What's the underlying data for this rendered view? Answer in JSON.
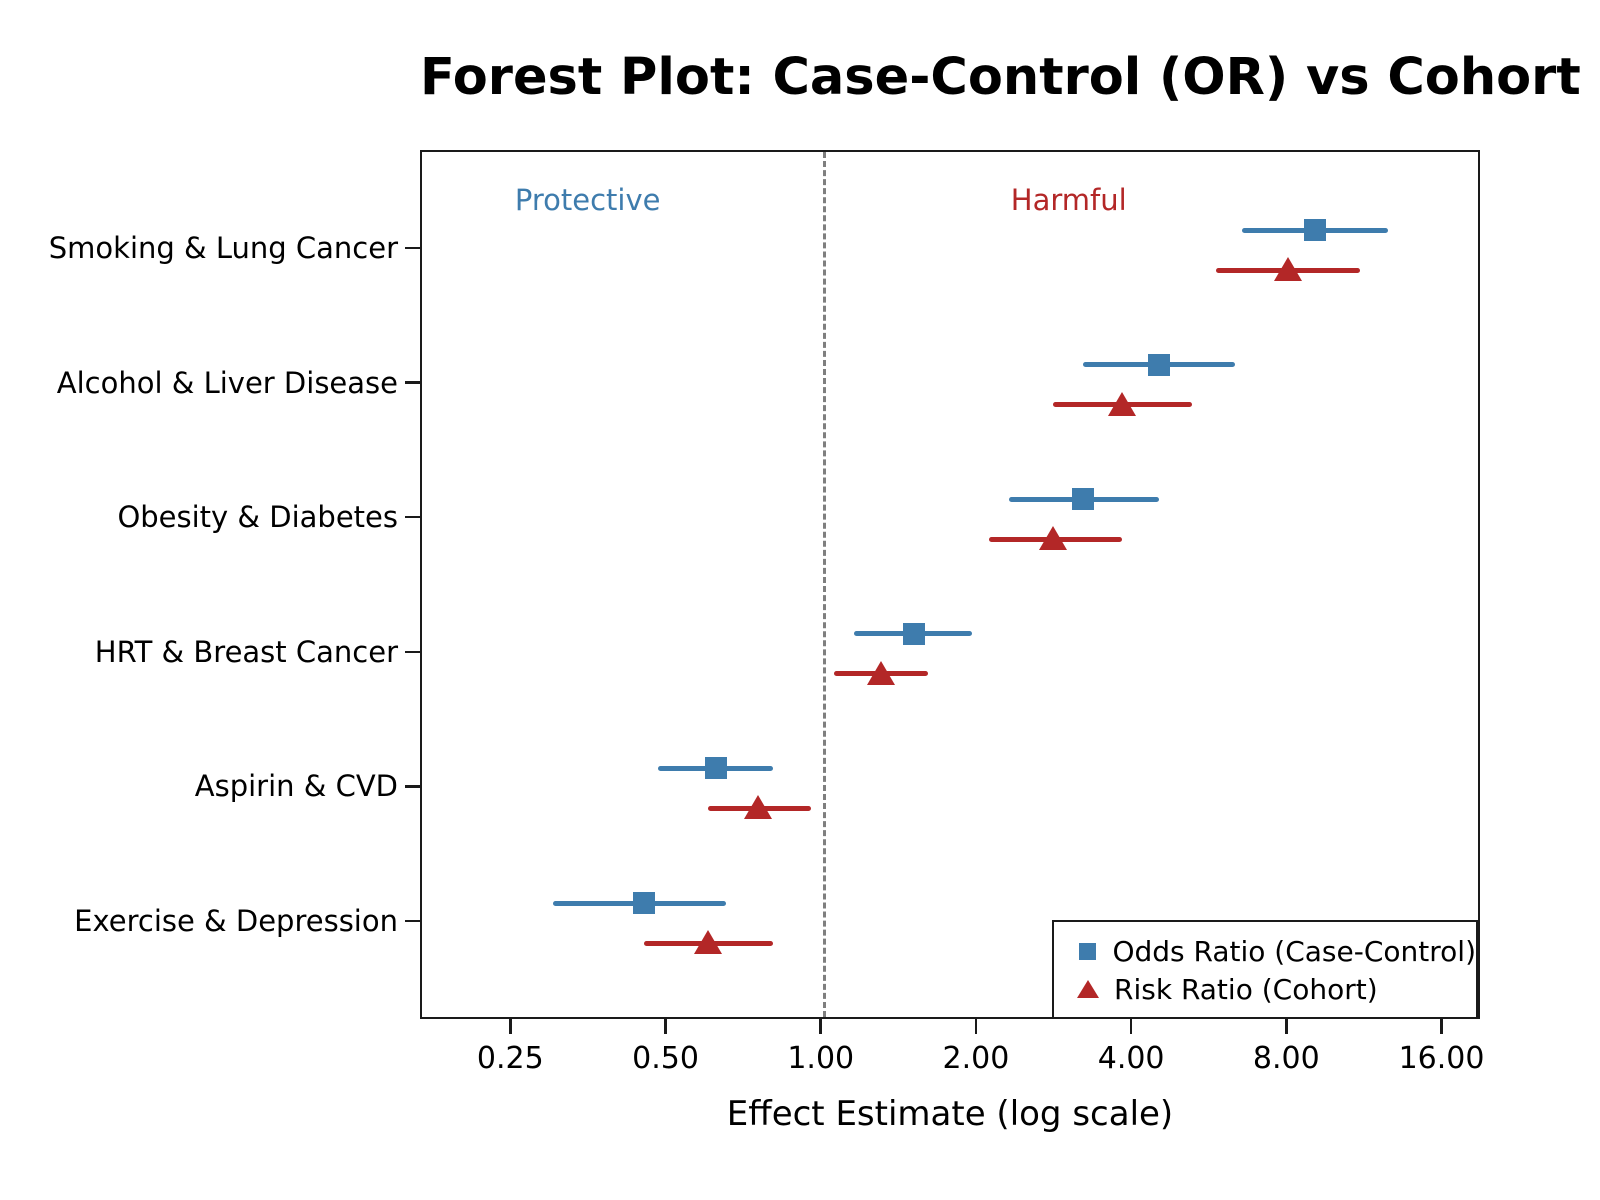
{
  "title": "Forest Plot: Case-Control (OR) vs Cohort (RR)",
  "colors": {
    "odds_ratio": "#3e7cad",
    "risk_ratio": "#b32727",
    "reference_line": "#7f7f7f",
    "axis": "#1a1a1a"
  },
  "legend": {
    "items": [
      {
        "label": "Odds Ratio (Case-Control)",
        "marker": "square",
        "color": "#3e7cad"
      },
      {
        "label": "Risk Ratio (Cohort)",
        "marker": "triangle",
        "color": "#b32727"
      }
    ]
  },
  "chart_data": {
    "type": "scatter",
    "variant": "forest-plot",
    "title": "Forest Plot: Case-Control (OR) vs Cohort (RR)",
    "xlabel": "Effect Estimate (log scale)",
    "ylabel": "",
    "xscale": "log2",
    "xlim": [
      0.167,
      19.0
    ],
    "grid": false,
    "legend_position": "lower right",
    "reference_line_x": 1.0,
    "x_ticks": [
      {
        "value": 0.25,
        "label": "0.25"
      },
      {
        "value": 0.5,
        "label": "0.50"
      },
      {
        "value": 1.0,
        "label": "1.00"
      },
      {
        "value": 2.0,
        "label": "2.00"
      },
      {
        "value": 4.0,
        "label": "4.00"
      },
      {
        "value": 8.0,
        "label": "8.00"
      },
      {
        "value": 16.0,
        "label": "16.00"
      }
    ],
    "categories": [
      "Smoking & Lung Cancer",
      "Alcohol & Liver Disease",
      "Obesity & Diabetes",
      "HRT & Breast Cancer",
      "Aspirin & CVD",
      "Exercise & Depression"
    ],
    "series": [
      {
        "name": "Odds Ratio (Case-Control)",
        "marker": "square",
        "color": "#3e7cad",
        "values": [
          {
            "est": 9.0,
            "lo": 6.5,
            "hi": 12.5
          },
          {
            "est": 4.5,
            "lo": 3.2,
            "hi": 6.3
          },
          {
            "est": 3.2,
            "lo": 2.3,
            "hi": 4.5
          },
          {
            "est": 1.5,
            "lo": 1.15,
            "hi": 1.95
          },
          {
            "est": 0.62,
            "lo": 0.48,
            "hi": 0.8
          },
          {
            "est": 0.45,
            "lo": 0.3,
            "hi": 0.65
          }
        ]
      },
      {
        "name": "Risk Ratio (Cohort)",
        "marker": "triangle",
        "color": "#b32727",
        "values": [
          {
            "est": 8.0,
            "lo": 5.8,
            "hi": 11.0
          },
          {
            "est": 3.8,
            "lo": 2.8,
            "hi": 5.2
          },
          {
            "est": 2.8,
            "lo": 2.1,
            "hi": 3.8
          },
          {
            "est": 1.3,
            "lo": 1.05,
            "hi": 1.6
          },
          {
            "est": 0.75,
            "lo": 0.6,
            "hi": 0.95
          },
          {
            "est": 0.6,
            "lo": 0.45,
            "hi": 0.8
          }
        ]
      }
    ],
    "annotations": [
      {
        "text": "Protective",
        "x": 0.35,
        "color": "#3e7cad"
      },
      {
        "text": "Harmful",
        "x": 3.0,
        "color": "#b32727"
      }
    ]
  }
}
